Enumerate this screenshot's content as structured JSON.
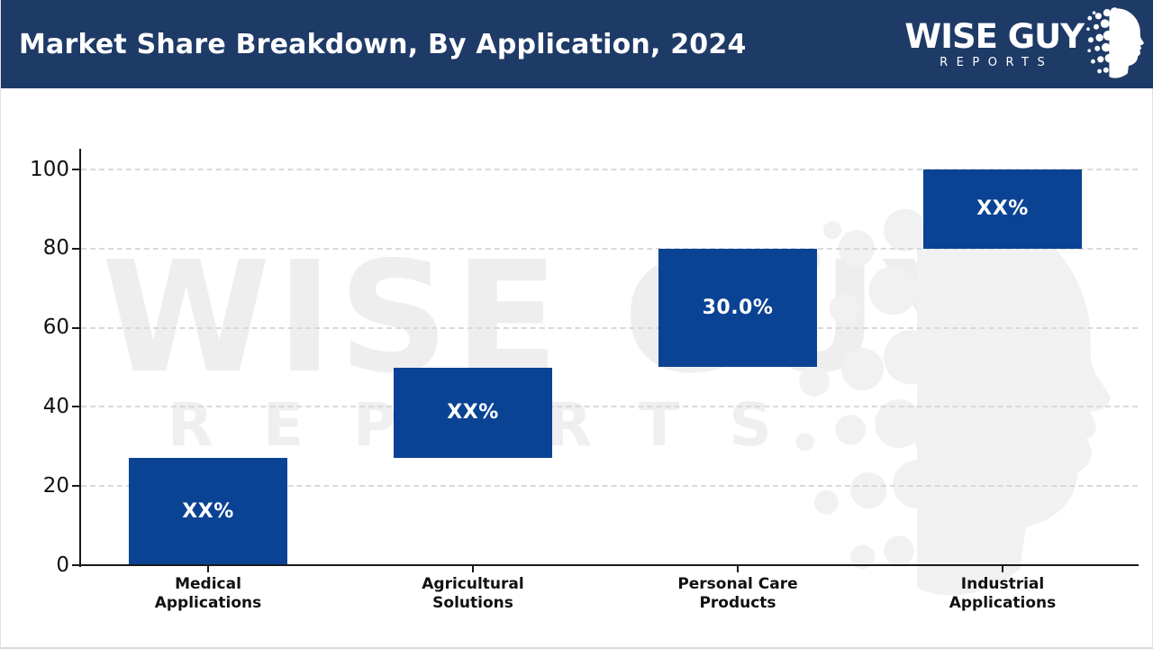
{
  "header": {
    "title": "Market Share Breakdown, By Application, 2024",
    "logo": {
      "brand": "WISE GUY",
      "sub": "REPORTS"
    }
  },
  "watermark": {
    "brand": "WISE GUY",
    "sub": "REPORTS"
  },
  "chart_data": {
    "type": "bar",
    "subtype": "waterfall",
    "title": "Market Share Breakdown, By Application, 2024",
    "categories": [
      "Medical Applications",
      "Agricultural Solutions",
      "Personal Care Products",
      "Industrial Applications"
    ],
    "category_label_lines": [
      [
        "Medical",
        "Applications"
      ],
      [
        "Agricultural",
        "Solutions"
      ],
      [
        "Personal Care",
        "Products"
      ],
      [
        "Industrial",
        "Applications"
      ]
    ],
    "bars": [
      {
        "category": "Medical Applications",
        "start": 0,
        "end": 27,
        "value_label": "XX%"
      },
      {
        "category": "Agricultural Solutions",
        "start": 27,
        "end": 50,
        "value_label": "XX%"
      },
      {
        "category": "Personal Care Products",
        "start": 50,
        "end": 80,
        "value_label": "30.0%"
      },
      {
        "category": "Industrial Applications",
        "start": 80,
        "end": 100,
        "value_label": "XX%"
      }
    ],
    "yticks": [
      0,
      20,
      40,
      60,
      80,
      100
    ],
    "ylim": [
      0,
      105
    ],
    "xlabel": "",
    "ylabel": "",
    "grid": "horizontal-dashed",
    "legend": "none",
    "colors": {
      "bar": "#0b4394",
      "grid": "#d9d9d9",
      "axis": "#1a1a1a",
      "header_bg": "#1e3a67",
      "bar_label_text": "#ffffff",
      "watermark": "#eeeeee"
    }
  }
}
